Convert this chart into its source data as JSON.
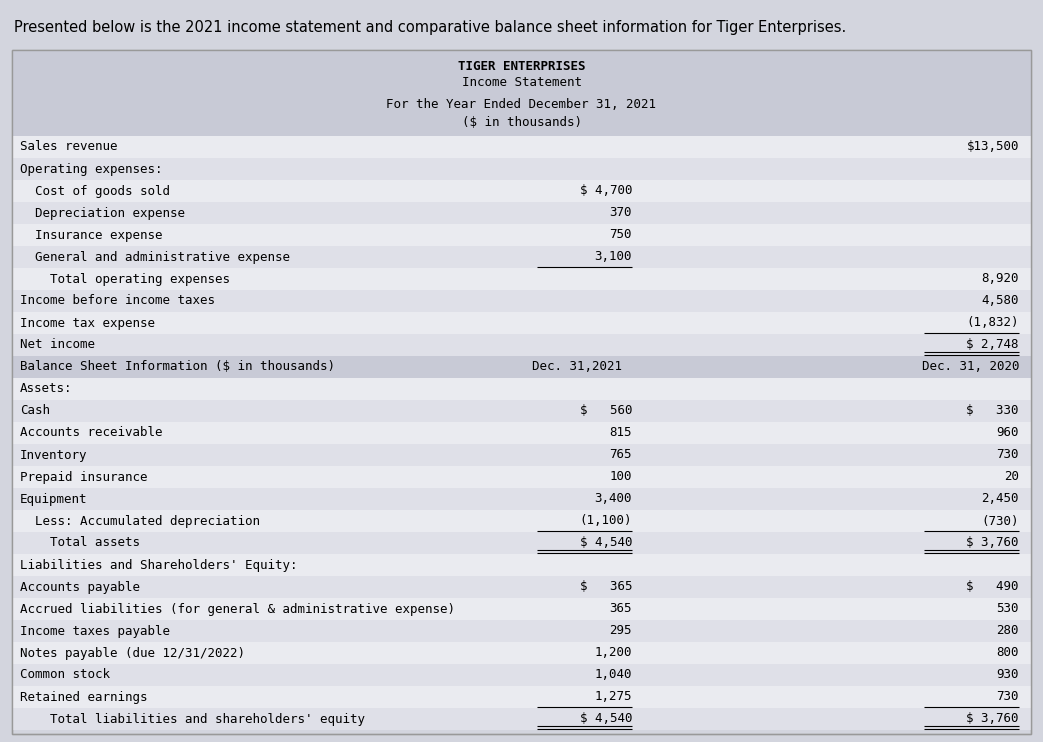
{
  "intro_text": "Presented below is the 2021 income statement and comparative balance sheet information for Tiger Enterprises.",
  "table_title_lines": [
    "TIGER ENTERPRISES",
    "Income Statement",
    "For the Year Ended December 31, 2021",
    "($ in thousands)"
  ],
  "title_bold": [
    true,
    false,
    false,
    false
  ],
  "bg_color": "#d3d5de",
  "header_bg": "#c8cad6",
  "row_light": "#eaebf0",
  "row_mid": "#dfe0e8",
  "income_rows": [
    {
      "label": "Sales revenue",
      "col1": "",
      "col2": "$13,500",
      "ul1": false,
      "ul2": false
    },
    {
      "label": "Operating expenses:",
      "col1": "",
      "col2": "",
      "ul1": false,
      "ul2": false
    },
    {
      "label": "  Cost of goods sold",
      "col1": "$ 4,700",
      "col2": "",
      "ul1": false,
      "ul2": false
    },
    {
      "label": "  Depreciation expense",
      "col1": "370",
      "col2": "",
      "ul1": false,
      "ul2": false
    },
    {
      "label": "  Insurance expense",
      "col1": "750",
      "col2": "",
      "ul1": false,
      "ul2": false
    },
    {
      "label": "  General and administrative expense",
      "col1": "3,100",
      "col2": "",
      "ul1": true,
      "ul2": false
    },
    {
      "label": "    Total operating expenses",
      "col1": "",
      "col2": "8,920",
      "ul1": false,
      "ul2": false
    },
    {
      "label": "Income before income taxes",
      "col1": "",
      "col2": "4,580",
      "ul1": false,
      "ul2": false
    },
    {
      "label": "Income tax expense",
      "col1": "",
      "col2": "(1,832)",
      "ul1": false,
      "ul2": true
    },
    {
      "label": "Net income",
      "col1": "",
      "col2": "$ 2,748",
      "ul1": false,
      "ul2": false,
      "dbl2": true
    }
  ],
  "bs_header": {
    "label": "Balance Sheet Information ($ in thousands)",
    "col1": "Dec. 31,2021",
    "col2": "Dec. 31, 2020"
  },
  "bs_rows": [
    {
      "label": "Assets:",
      "col1": "",
      "col2": "",
      "ul1": false,
      "ul2": false
    },
    {
      "label": "Cash",
      "col1": "$   560",
      "col2": "$   330",
      "ul1": false,
      "ul2": false
    },
    {
      "label": "Accounts receivable",
      "col1": "815",
      "col2": "960",
      "ul1": false,
      "ul2": false
    },
    {
      "label": "Inventory",
      "col1": "765",
      "col2": "730",
      "ul1": false,
      "ul2": false
    },
    {
      "label": "Prepaid insurance",
      "col1": "100",
      "col2": "20",
      "ul1": false,
      "ul2": false
    },
    {
      "label": "Equipment",
      "col1": "3,400",
      "col2": "2,450",
      "ul1": false,
      "ul2": false
    },
    {
      "label": "  Less: Accumulated depreciation",
      "col1": "(1,100)",
      "col2": "(730)",
      "ul1": true,
      "ul2": true
    },
    {
      "label": "    Total assets",
      "col1": "$ 4,540",
      "col2": "$ 3,760",
      "ul1": false,
      "ul2": false,
      "dbl1": true,
      "dbl2": true
    },
    {
      "label": "Liabilities and Shareholders' Equity:",
      "col1": "",
      "col2": "",
      "ul1": false,
      "ul2": false
    },
    {
      "label": "Accounts payable",
      "col1": "$   365",
      "col2": "$   490",
      "ul1": false,
      "ul2": false
    },
    {
      "label": "Accrued liabilities (for general & administrative expense)",
      "col1": "365",
      "col2": "530",
      "ul1": false,
      "ul2": false
    },
    {
      "label": "Income taxes payable",
      "col1": "295",
      "col2": "280",
      "ul1": false,
      "ul2": false
    },
    {
      "label": "Notes payable (due 12/31/2022)",
      "col1": "1,200",
      "col2": "800",
      "ul1": false,
      "ul2": false
    },
    {
      "label": "Common stock",
      "col1": "1,040",
      "col2": "930",
      "ul1": false,
      "ul2": false
    },
    {
      "label": "Retained earnings",
      "col1": "1,275",
      "col2": "730",
      "ul1": true,
      "ul2": true
    },
    {
      "label": "    Total liabilities and shareholders' equity",
      "col1": "$ 4,540",
      "col2": "$ 3,760",
      "ul1": false,
      "ul2": false,
      "dbl1": true,
      "dbl2": true
    }
  ]
}
